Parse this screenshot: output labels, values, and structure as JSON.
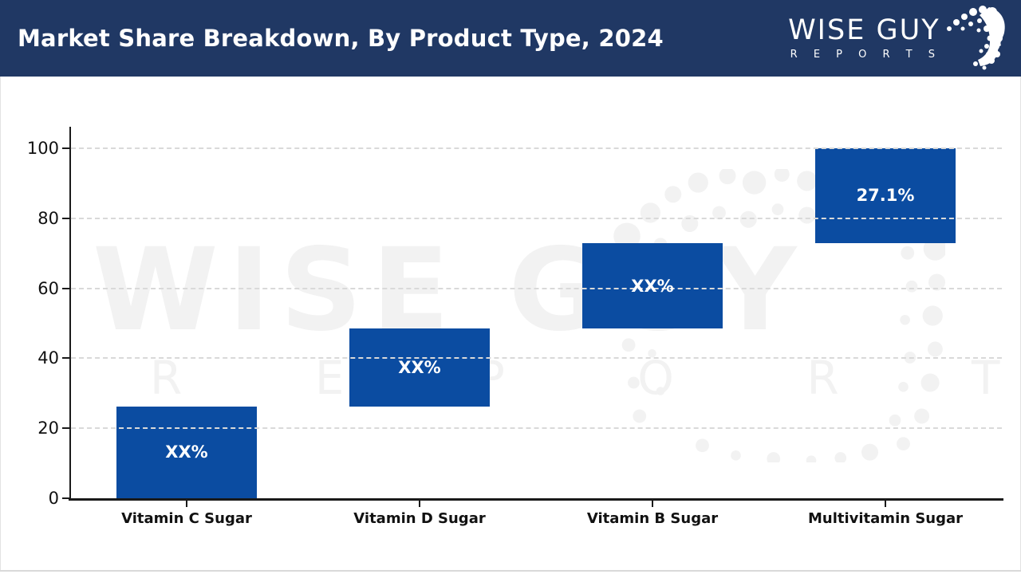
{
  "header": {
    "title": "Market Share Breakdown, By Product Type, 2024",
    "bg_color": "#203864",
    "brand": {
      "line1": "WISE GUY",
      "line2": "R E P O R T S"
    }
  },
  "watermark": {
    "line1": "WISE GUY",
    "line2": "R E P O R T S"
  },
  "chart_data": {
    "type": "bar",
    "subtype": "floating-waterfall",
    "title": "Market Share Breakdown, By Product Type, 2024",
    "categories": [
      "Vitamin C Sugar",
      "Vitamin D Sugar",
      "Vitamin B Sugar",
      "Multivitamin Sugar"
    ],
    "series": [
      {
        "name": "Market share (%)",
        "segments": [
          {
            "category": "Vitamin C Sugar",
            "start": 0,
            "end": 26.2,
            "value": 26.2,
            "label": "XX%"
          },
          {
            "category": "Vitamin D Sugar",
            "start": 26.2,
            "end": 48.5,
            "value": 22.3,
            "label": "XX%"
          },
          {
            "category": "Vitamin B Sugar",
            "start": 48.5,
            "end": 72.9,
            "value": 24.4,
            "label": "XX%"
          },
          {
            "category": "Multivitamin Sugar",
            "start": 72.9,
            "end": 100,
            "value": 27.1,
            "label": "27.1%"
          }
        ]
      }
    ],
    "yticks": [
      0,
      20,
      40,
      60,
      80,
      100
    ],
    "ylim": [
      0,
      106
    ],
    "xlabel": "",
    "ylabel": "",
    "grid": "horizontal-dashed",
    "legend": "none",
    "bar_color": "#0b4ca1",
    "bar_label_color": "#ffffff"
  },
  "colors": {
    "header_bg": "#203864",
    "bar": "#0b4ca1",
    "axis": "#1a1a1a",
    "grid": "#d9d9d9",
    "watermark": "#f2f2f2",
    "background": "#ffffff"
  }
}
